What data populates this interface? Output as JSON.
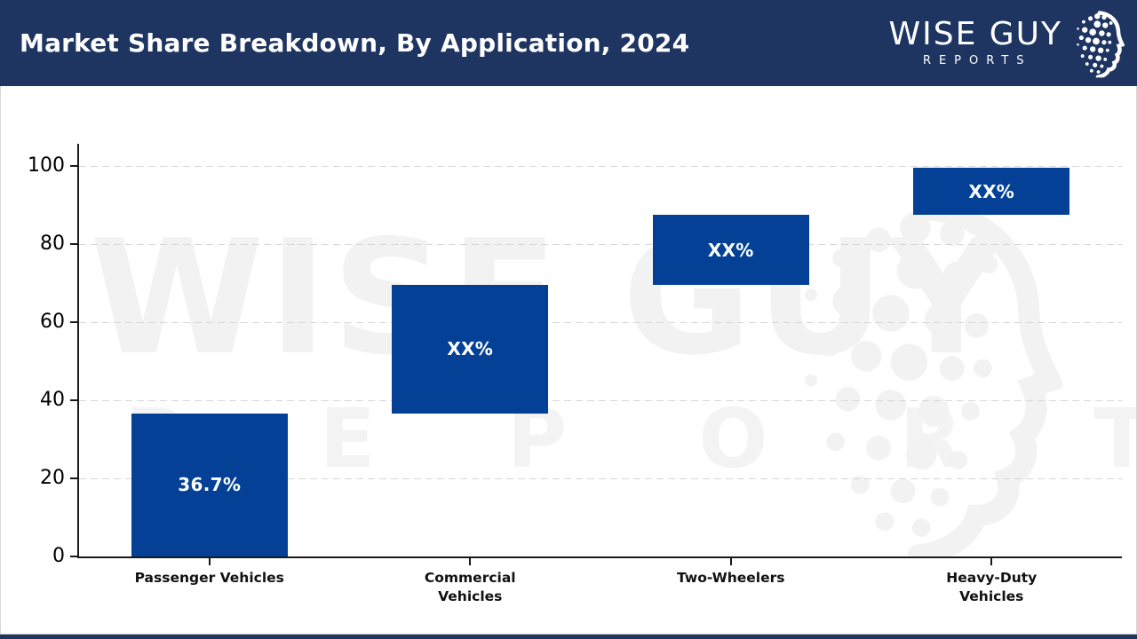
{
  "header": {
    "title": "Market Share Breakdown, By Application, 2024",
    "bg_color": "#1f3561",
    "logo": {
      "line1": "WISE GUY",
      "line2": "REPORTS",
      "head_icon": "wise-guy-dotted-head"
    }
  },
  "watermark": {
    "line1": "WISE GUY",
    "line2": "R E P O R T S",
    "head_icon": "wise-guy-dotted-head"
  },
  "chart_data": {
    "type": "bar",
    "subtype": "waterfall-floating-bars",
    "title": "Market Share Breakdown, By Application, 2024",
    "xlabel": "",
    "ylabel": "",
    "categories": [
      "Passenger Vehicles",
      "Commercial\nVehicles",
      "Two-Wheelers",
      "Heavy-Duty\nVehicles"
    ],
    "segments": [
      {
        "category": "Passenger Vehicles",
        "start": 0,
        "end": 36.7,
        "label": "36.7%"
      },
      {
        "category": "Commercial Vehicles",
        "start": 36.7,
        "end": 69.5,
        "label": "XX%"
      },
      {
        "category": "Two-Wheelers",
        "start": 69.5,
        "end": 87.5,
        "label": "XX%"
      },
      {
        "category": "Heavy-Duty Vehicles",
        "start": 87.5,
        "end": 99.5,
        "label": "XX%"
      }
    ],
    "yticks": [
      0,
      20,
      40,
      60,
      80,
      100
    ],
    "ylim": [
      0,
      105.7
    ],
    "grid": "dashed-horizontal",
    "legend": "none",
    "bar_color": "#044196",
    "grid_color": "#d7d7d7",
    "axis_color": "#1a1a1a"
  }
}
